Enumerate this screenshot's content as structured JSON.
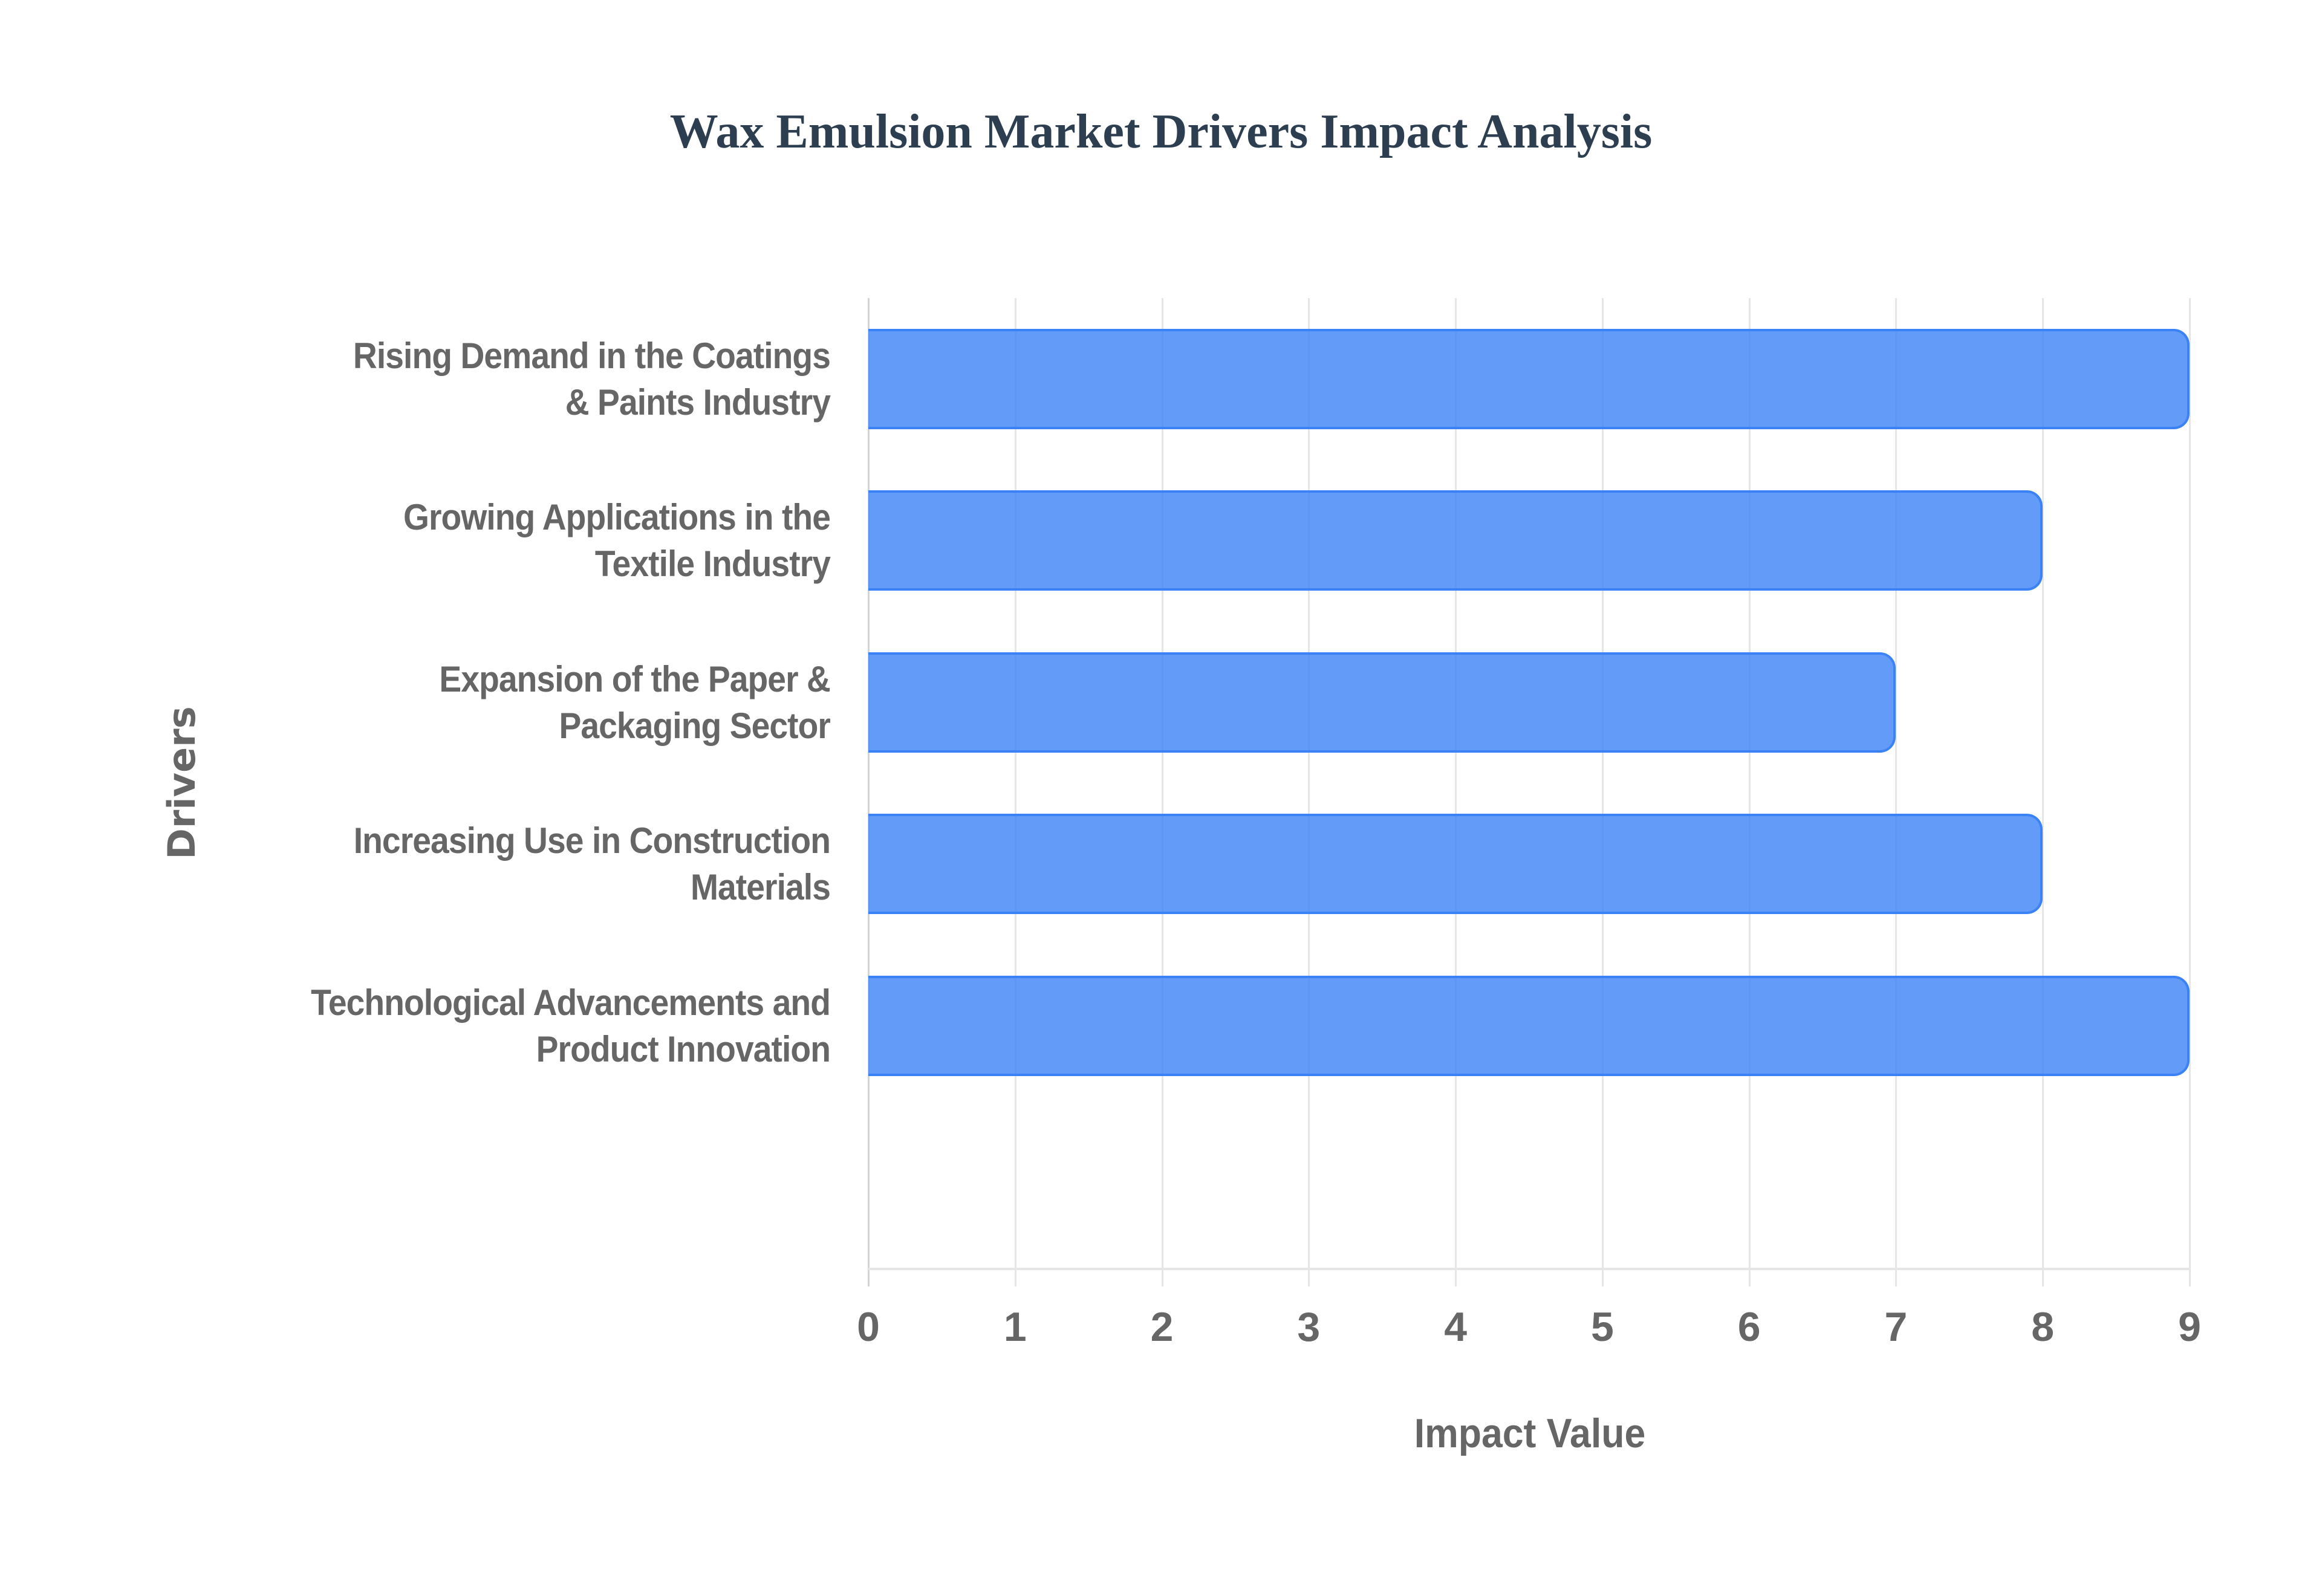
{
  "chart_data": {
    "type": "bar",
    "orientation": "horizontal",
    "title": "Wax Emulsion Market Drivers Impact Analysis",
    "xlabel": "Impact Value",
    "ylabel": "Drivers",
    "categories": [
      "Rising Demand in the Coatings & Paints Industry",
      "Growing Applications in the Textile Industry",
      "Expansion of the Paper & Packaging Sector",
      "Increasing Use in Construction Materials",
      "Technological Advancements and Product Innovation"
    ],
    "category_lines": [
      [
        "Rising Demand in the Coatings",
        "& Paints Industry"
      ],
      [
        "Growing Applications in the",
        "Textile Industry"
      ],
      [
        "Expansion of the Paper &",
        "Packaging Sector"
      ],
      [
        "Increasing Use in Construction",
        "Materials"
      ],
      [
        "Technological Advancements and",
        "Product Innovation"
      ]
    ],
    "values": [
      9,
      8,
      7,
      8,
      9
    ],
    "xlim": [
      0,
      9
    ],
    "xticks": [
      "0",
      "1",
      "2",
      "3",
      "4",
      "5",
      "6",
      "7",
      "8",
      "9"
    ],
    "grid": true,
    "legend": null,
    "colors": {
      "bar_fill": "#6399f5",
      "bar_border": "#3b82f6",
      "title": "#2c3e50",
      "axis_text": "#666666",
      "grid": "#e6e6e6"
    }
  }
}
